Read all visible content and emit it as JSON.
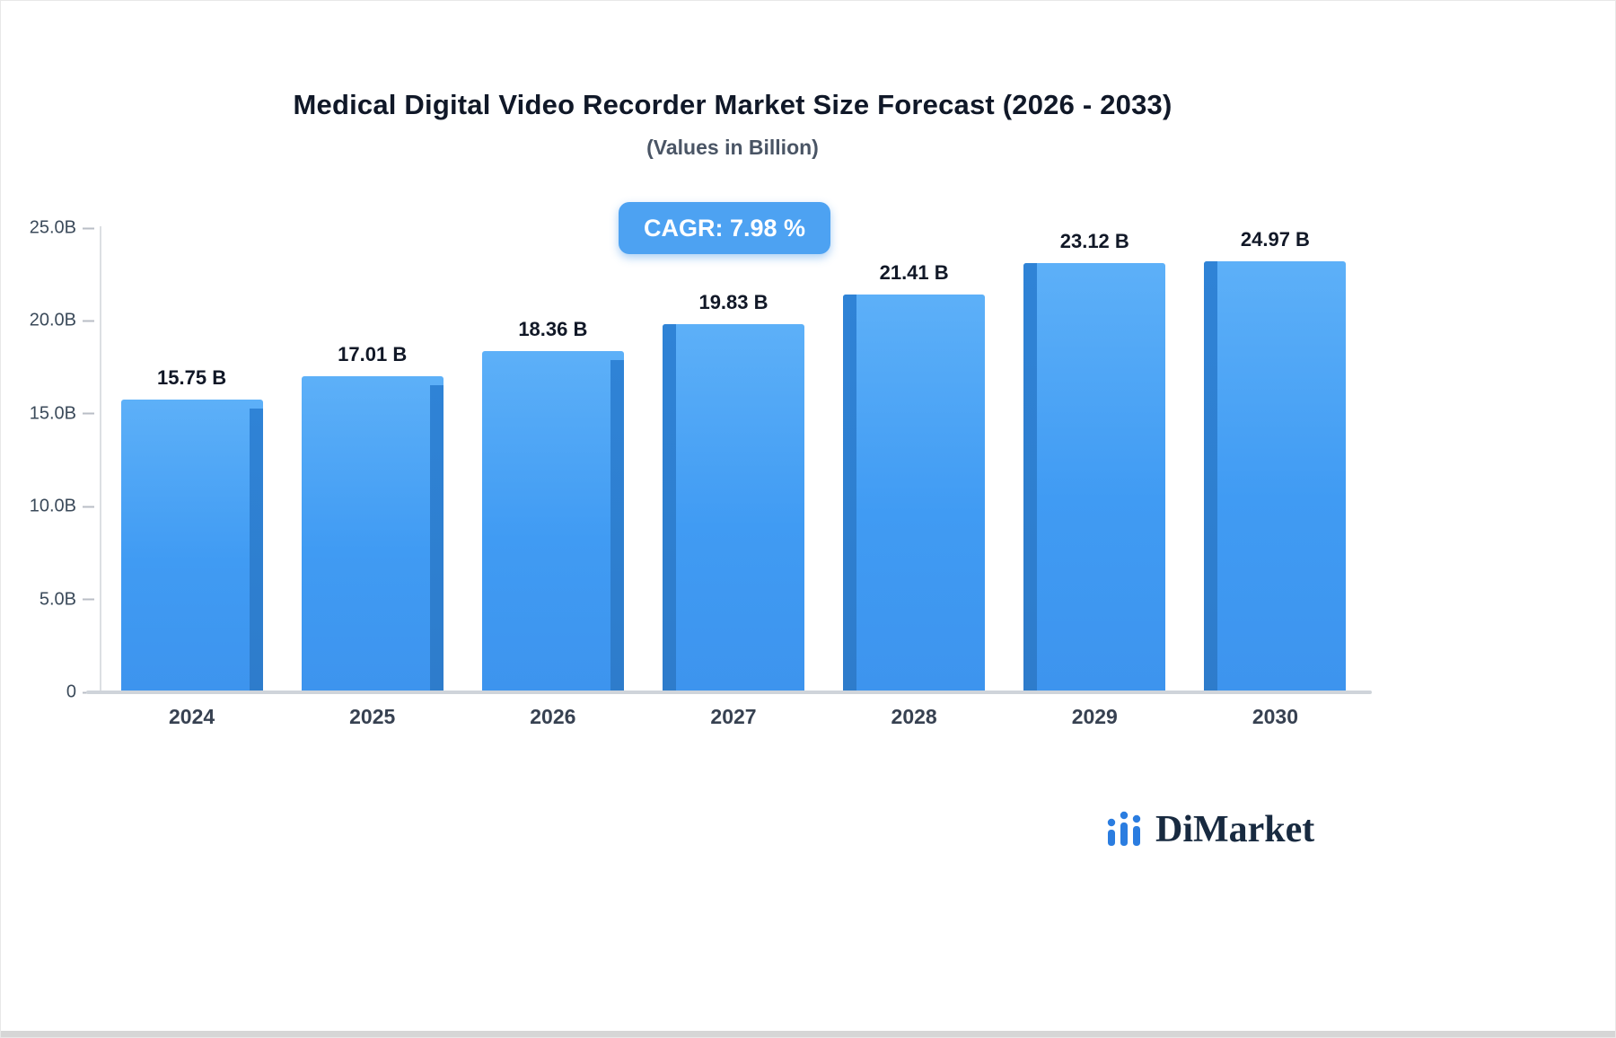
{
  "header": {
    "title": "Medical Digital Video Recorder Market Size Forecast (2026 - 2033)",
    "subtitle": "(Values in Billion)",
    "cagr_label": "CAGR: 7.98 %"
  },
  "chart_data": {
    "type": "bar",
    "title": "Medical Digital Video Recorder Market Size Forecast (2026 - 2033)",
    "subtitle": "(Values in Billion)",
    "categories": [
      "2024",
      "2025",
      "2026",
      "2027",
      "2028",
      "2029",
      "2030"
    ],
    "values": [
      15.75,
      17.01,
      18.36,
      19.83,
      21.41,
      23.12,
      24.97
    ],
    "value_labels": [
      "15.75 B",
      "17.01 B",
      "18.36 B",
      "19.83 B",
      "21.41 B",
      "23.12 B",
      "24.97 B"
    ],
    "xlabel": "",
    "ylabel": "",
    "ylim": [
      0,
      25
    ],
    "y_ticks": [
      "0",
      "5.0B",
      "10.0B",
      "15.0B",
      "20.0B",
      "25.0B"
    ],
    "grid": false,
    "legend": "none",
    "bar_color": "#409bf3",
    "bar_side_color": "#2e7ccb",
    "cagr": "7.98 %"
  },
  "branding": {
    "name": "DiMarket",
    "icon": "bar-dots-logo-icon",
    "icon_color": "#2b7de0",
    "text_color": "#182a40"
  }
}
